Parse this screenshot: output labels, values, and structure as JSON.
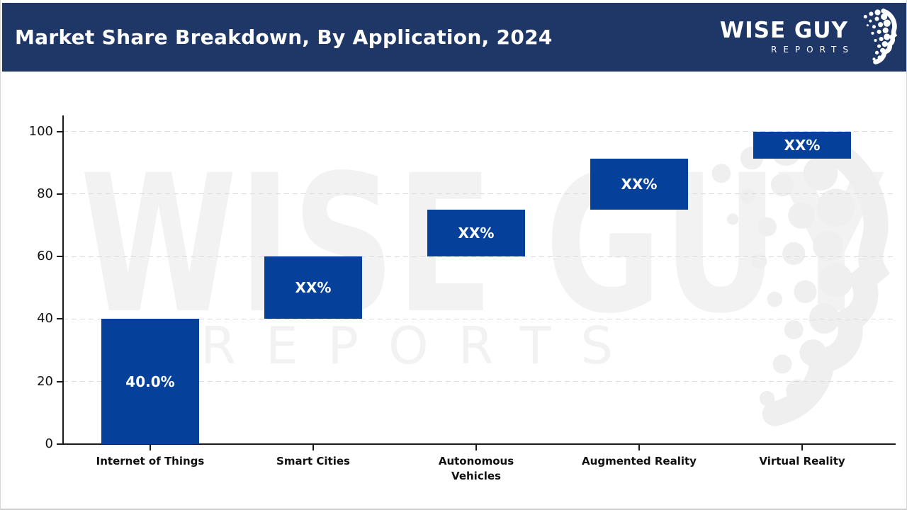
{
  "header": {
    "title": "Market Share Breakdown, By Application, 2024",
    "logo": {
      "line1": "WISE GUY",
      "line2": "REPORTS"
    }
  },
  "watermark": {
    "line1": "WISE GUY",
    "line2": "REPORTS"
  },
  "colors": {
    "header_bg": "#1f3767",
    "bar_blue": "#05419a",
    "watermark_gray": "#f2f2f2",
    "grid_gray": "#dcdcdc",
    "axis_black": "#1a1a1a"
  },
  "chart_data": {
    "type": "bar",
    "subtype": "waterfall",
    "title": "Market Share Breakdown, By Application, 2024",
    "categories": [
      "Internet of Things",
      "Smart Cities",
      "Autonomous Vehicles",
      "Augmented Reality",
      "Virtual Reality"
    ],
    "category_lines": [
      [
        "Internet of Things"
      ],
      [
        "Smart Cities"
      ],
      [
        "Autonomous",
        "Vehicles"
      ],
      [
        "Augmented Reality"
      ],
      [
        "Virtual Reality"
      ]
    ],
    "bar_starts": [
      0,
      40,
      60,
      75,
      91.4
    ],
    "values": [
      40,
      20,
      15,
      16.4,
      8.6
    ],
    "bar_labels": [
      "40.0%",
      "XX%",
      "XX%",
      "XX%",
      "XX%"
    ],
    "yticks": [
      0,
      20,
      40,
      60,
      80,
      100
    ],
    "ylim": [
      0,
      105
    ],
    "xlabel": "",
    "ylabel": "",
    "legend": "none",
    "grid": {
      "axis": "y",
      "style": "dashed"
    },
    "bar_color": "#05419a",
    "bar_label_color": "#ffffff"
  }
}
